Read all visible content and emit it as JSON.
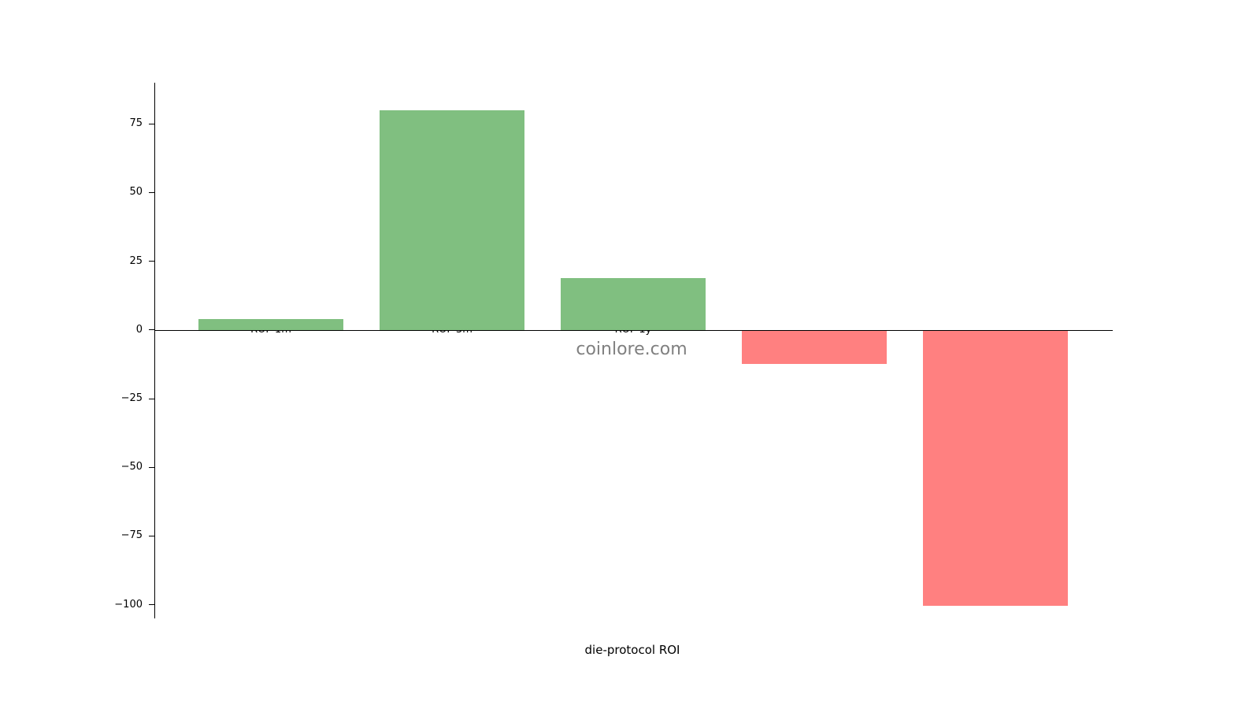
{
  "chart_data": {
    "type": "bar",
    "title": "die-protocol ROI",
    "watermark": "coinlore.com",
    "watermark_color": "#808080",
    "categories": [
      "ROI' 1m",
      "ROI' 3m",
      "ROI' 1y",
      "",
      ""
    ],
    "values": [
      4,
      80,
      19,
      -12,
      -100
    ],
    "bar_colors": [
      "#80bf80",
      "#80bf80",
      "#80bf80",
      "#ff8080",
      "#ff8080"
    ],
    "positive_color": "#80bf80",
    "negative_color": "#ff8080",
    "yticks": [
      75,
      50,
      25,
      0,
      -25,
      -50,
      -75,
      -100
    ],
    "ytick_labels": [
      "75",
      "50",
      "25",
      "0",
      "−25",
      "−50",
      "−75",
      "−100"
    ],
    "ylim": [
      -105,
      90
    ],
    "xlabel": "",
    "ylabel": "",
    "grid": false,
    "legend_position": "none",
    "axis_color": "#000000",
    "background_color": "#ffffff"
  }
}
